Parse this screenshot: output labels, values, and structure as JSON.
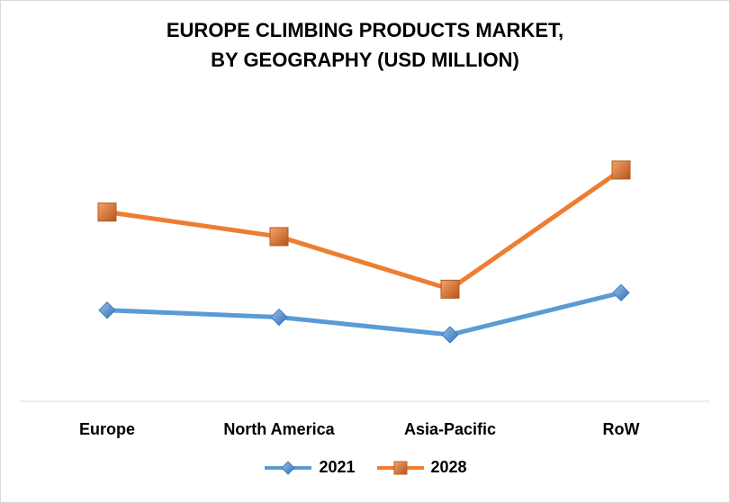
{
  "chart_data": {
    "type": "line",
    "title_lines": [
      "EUROPE CLIMBING PRODUCTS MARKET,",
      "BY GEOGRAPHY (USD MILLION)"
    ],
    "categories": [
      "Europe",
      "North America",
      "Asia-Pacific",
      "RoW"
    ],
    "series": [
      {
        "name": "2021",
        "values": [
          26,
          24,
          19,
          31
        ],
        "color": "#5B9BD5",
        "marker": "diamond"
      },
      {
        "name": "2028",
        "values": [
          54,
          47,
          32,
          66
        ],
        "color": "#ED7D31",
        "marker": "square"
      }
    ],
    "ylim": [
      0,
      95
    ],
    "y_axis_visible": false,
    "grid": false,
    "legend_position": "bottom"
  }
}
